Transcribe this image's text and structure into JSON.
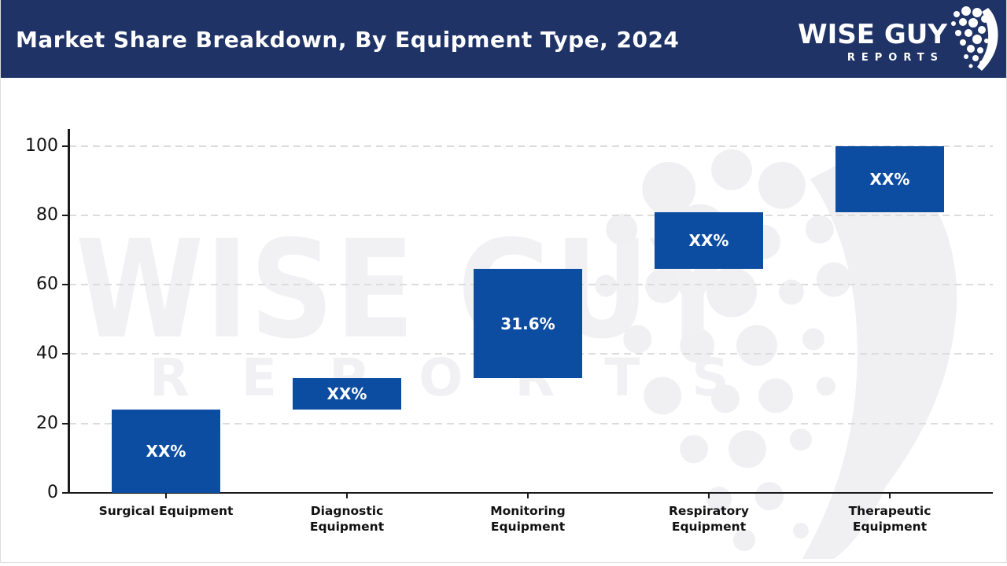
{
  "header": {
    "title": "Market Share Breakdown, By Equipment Type, 2024",
    "bg_color": "#1f3366",
    "logo": {
      "line1": "WISE GUY",
      "line2": "REPORTS"
    }
  },
  "watermark": {
    "line1": "WISE GUY",
    "line2": "REPORTS"
  },
  "chart_data": {
    "type": "bar",
    "subtype": "waterfall",
    "title": "Market Share Breakdown, By Equipment Type, 2024",
    "xlabel": "",
    "ylabel": "",
    "ylim": [
      0,
      105
    ],
    "y_ticks": [
      0,
      20,
      40,
      60,
      80,
      100
    ],
    "grid": "horizontal-dashed",
    "legend": "none",
    "bar_color": "#0d4da1",
    "bar_label_color": "#ffffff",
    "categories": [
      "Surgical Equipment",
      "Diagnostic Equipment",
      "Monitoring Equipment",
      "Respiratory Equipment",
      "Therapeutic Equipment"
    ],
    "segments": [
      {
        "category": "Surgical Equipment",
        "tick_label": "Surgical Equipment",
        "start": 0,
        "end": 24,
        "label": "XX%"
      },
      {
        "category": "Diagnostic Equipment",
        "tick_label": "Diagnostic\nEquipment",
        "start": 24,
        "end": 33,
        "label": "XX%"
      },
      {
        "category": "Monitoring Equipment",
        "tick_label": "Monitoring\nEquipment",
        "start": 33,
        "end": 64.6,
        "label": "31.6%"
      },
      {
        "category": "Respiratory Equipment",
        "tick_label": "Respiratory\nEquipment",
        "start": 64.6,
        "end": 81,
        "label": "XX%"
      },
      {
        "category": "Therapeutic Equipment",
        "tick_label": "Therapeutic\nEquipment",
        "start": 81,
        "end": 100,
        "label": "XX%"
      }
    ]
  }
}
